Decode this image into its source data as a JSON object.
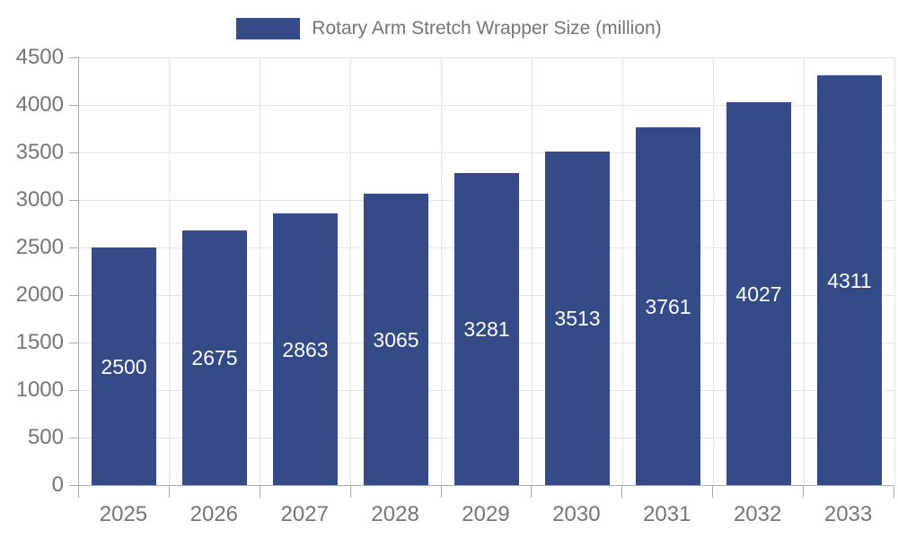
{
  "chart": {
    "background": "#ffffff",
    "colors": {
      "bar": "#344b87",
      "gridline": "#e4e4e7",
      "axis": "#aaaaaa",
      "tick_label": "#757575",
      "bar_label": "#ffffff"
    }
  },
  "chart_data": {
    "type": "bar",
    "title": "Rotary Arm Stretch Wrapper Size (million)",
    "series_name": "Rotary Arm Stretch Wrapper Size (million)",
    "categories": [
      "2025",
      "2026",
      "2027",
      "2028",
      "2029",
      "2030",
      "2031",
      "2032",
      "2033"
    ],
    "values": [
      2500,
      2675,
      2863,
      3065,
      3281,
      3513,
      3761,
      4027,
      4311
    ],
    "xlabel": "",
    "ylabel": "",
    "ylim": [
      0,
      4500
    ],
    "ytick_step": 500,
    "yticks": [
      0,
      500,
      1000,
      1500,
      2000,
      2500,
      3000,
      3500,
      4000,
      4500
    ],
    "grid": true,
    "legend_position": "top-center",
    "bar_color": "#344b87",
    "value_label_position": "inside-center",
    "value_label_color": "#ffffff"
  }
}
